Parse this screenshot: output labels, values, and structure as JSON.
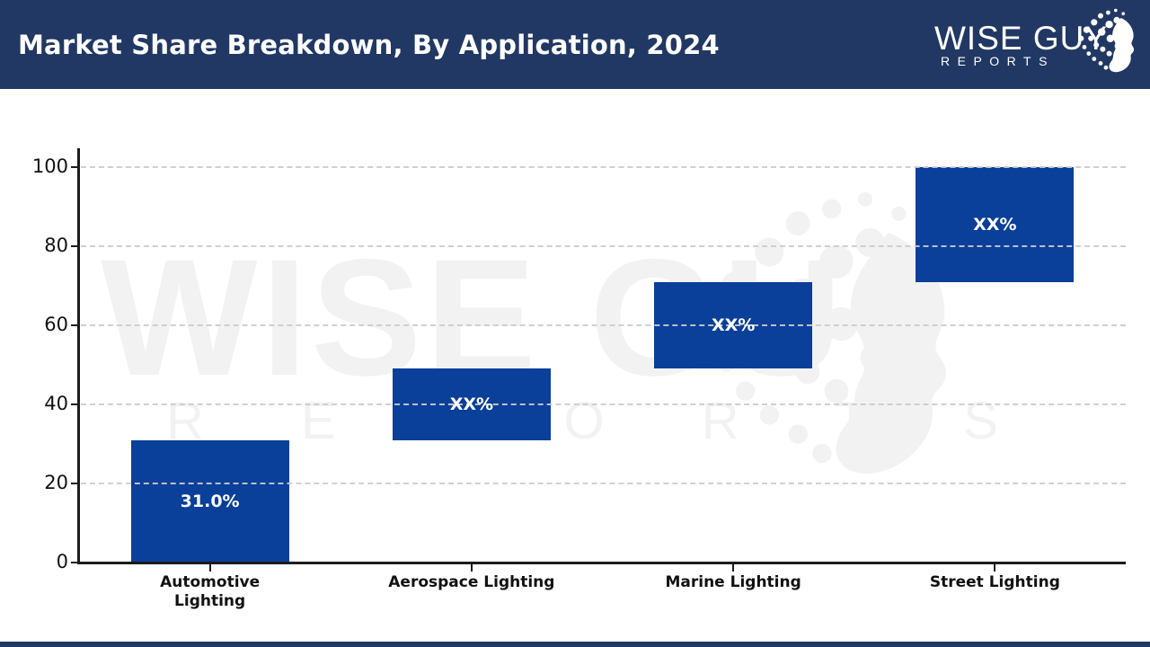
{
  "header": {
    "title": "Market Share Breakdown, By Application, 2024",
    "logo": {
      "name": "WISE GUY",
      "sub": "REPORTS"
    }
  },
  "watermark": {
    "name": "WISE GU",
    "sub": "R E P O R T S"
  },
  "footer": {},
  "chart_data": {
    "type": "bar",
    "subtype": "floating-waterfall",
    "title": "Market Share Breakdown, By Application, 2024",
    "categories": [
      "Automotive\nLighting",
      "Aerospace Lighting",
      "Marine Lighting",
      "Street Lighting"
    ],
    "series": [
      {
        "name": "Market Share",
        "segments": [
          {
            "category": "Automotive Lighting",
            "start": 0,
            "end": 31,
            "label": "31.0%"
          },
          {
            "category": "Aerospace Lighting",
            "start": 31,
            "end": 49,
            "label": "XX%"
          },
          {
            "category": "Marine Lighting",
            "start": 49,
            "end": 71,
            "label": "XX%"
          },
          {
            "category": "Street Lighting",
            "start": 71,
            "end": 100,
            "label": "XX%"
          }
        ]
      }
    ],
    "xlabel": "",
    "ylabel": "",
    "ylim": [
      0,
      100
    ],
    "yticks": [
      0,
      20,
      40,
      60,
      80,
      100
    ],
    "grid": "horizontal-dashed",
    "legend": "none",
    "bar_color": "#0a3f9a",
    "bar_label_color": "#ffffff",
    "grid_color": "#cccccc",
    "axis_color": "#1c1c1c"
  },
  "colors": {
    "header_bg": "#213864",
    "footer_bg": "#213864",
    "watermark": "#f2f2f2"
  }
}
